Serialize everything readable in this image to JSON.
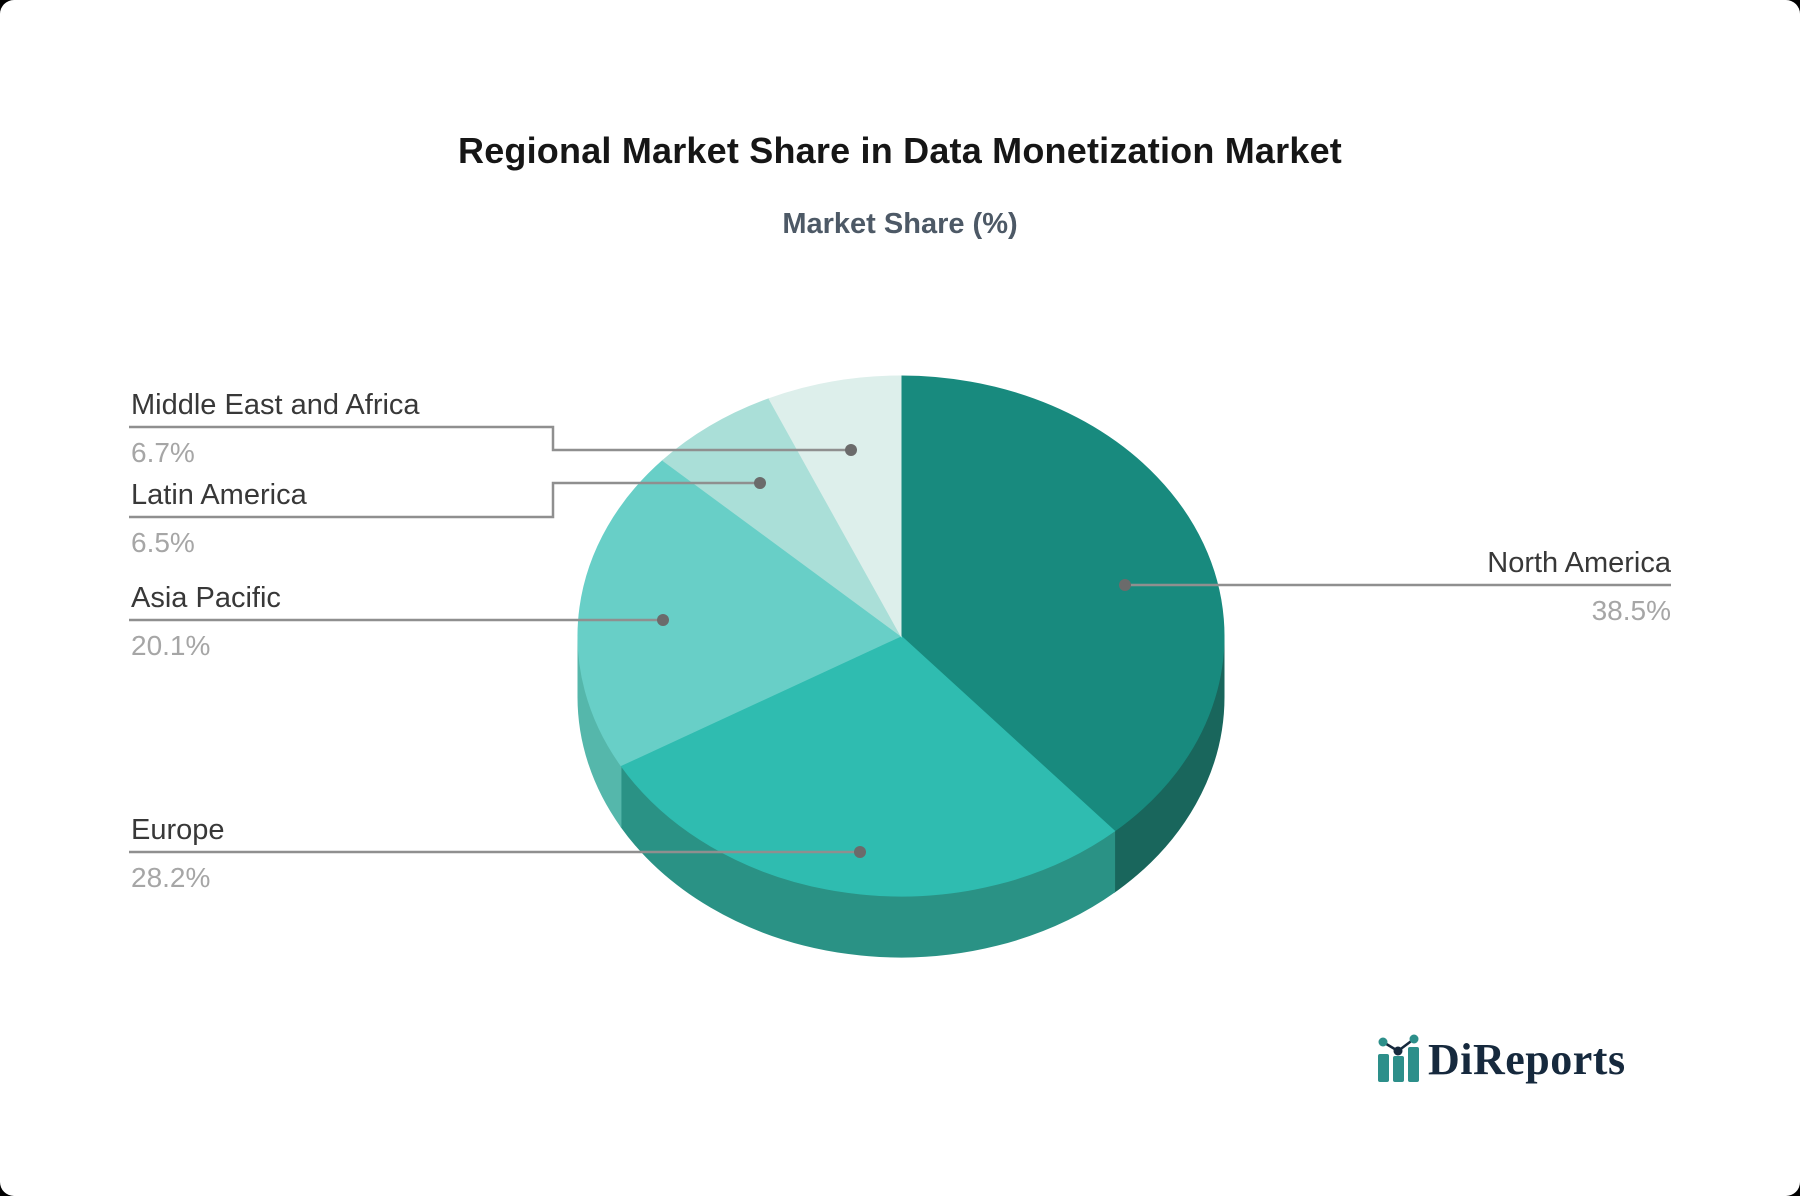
{
  "chart_data": {
    "type": "pie",
    "style": "3d",
    "title": "Regional Market Share in Data Monetization Market",
    "subtitle": "Market Share (%)",
    "unit": "%",
    "direction": "clockwise",
    "start_angle_deg": 0,
    "legend_position": "callout-labels",
    "slices": [
      {
        "label": "North America",
        "value": 38.5,
        "display": "38.5%",
        "color": "#188a7e",
        "side_color": "#19665c"
      },
      {
        "label": "Europe",
        "value": 28.2,
        "display": "28.2%",
        "color": "#2fbcb0",
        "side_color": "#2a9285"
      },
      {
        "label": "Asia Pacific",
        "value": 20.1,
        "display": "20.1%",
        "color": "#68cfc7",
        "side_color": "#55b7ab"
      },
      {
        "label": "Latin America",
        "value": 6.5,
        "display": "6.5%",
        "color": "#aadfd8",
        "side_color": "#8fcdc4"
      },
      {
        "label": "Middle East and Africa",
        "value": 6.7,
        "display": "6.7%",
        "color": "#ddefeb",
        "side_color": "#c2ded9"
      }
    ],
    "callout": {
      "line_color": "#8f8f8f",
      "dot_color": "#6b6b6b",
      "label_color": "#383838",
      "value_color": "#a6a6a6"
    }
  },
  "branding": {
    "logo_text": "DiReports",
    "logo_teal": "#2d8f8a",
    "logo_navy": "#16293d"
  }
}
